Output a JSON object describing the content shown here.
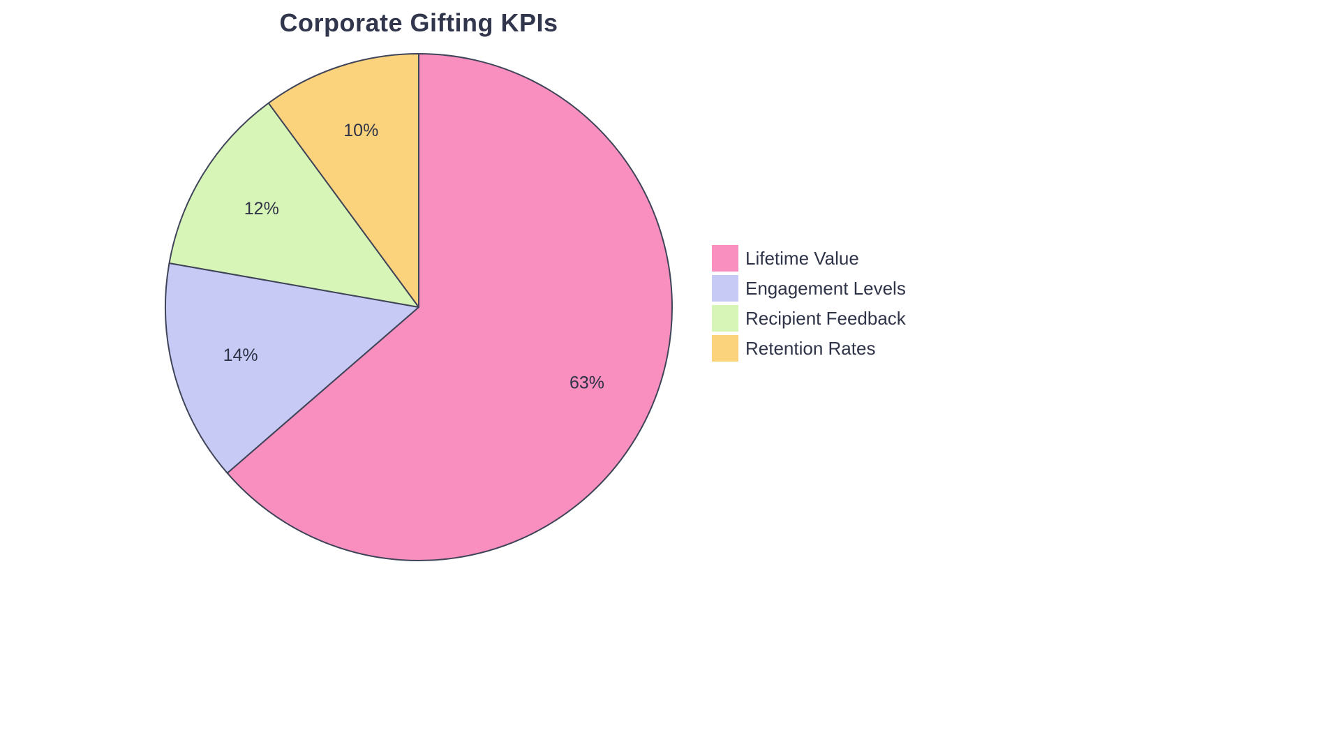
{
  "page": {
    "background_color": "#ffffff"
  },
  "chart_data": {
    "type": "pie",
    "title": "Corporate Gifting KPIs",
    "labels": [
      "Lifetime Value",
      "Engagement Levels",
      "Recipient Feedback",
      "Retention Rates"
    ],
    "values": [
      63,
      14,
      12,
      10
    ],
    "percent_labels": [
      "63%",
      "14%",
      "12%",
      "10%"
    ],
    "colors": [
      "#F88FBE",
      "#C7CAF4",
      "#D8F5B8",
      "#FBD37D"
    ],
    "stroke_color": "#3f4458",
    "text_color": "#2f3347",
    "start_angle_deg": -90,
    "direction": "clockwise",
    "legend_position": "right",
    "legend": [
      {
        "label": "Lifetime Value",
        "color": "#F88FBE"
      },
      {
        "label": "Engagement Levels",
        "color": "#C7CAF4"
      },
      {
        "label": "Recipient Feedback",
        "color": "#D8F5B8"
      },
      {
        "label": "Retention Rates",
        "color": "#FBD37D"
      }
    ]
  }
}
